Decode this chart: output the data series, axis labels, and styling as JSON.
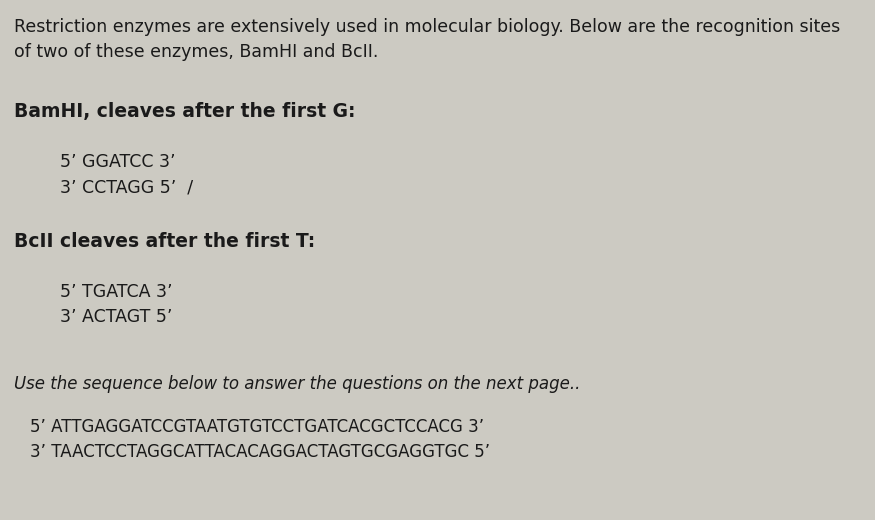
{
  "bg_color": "#cccac2",
  "text_color": "#1a1a1a",
  "intro_line1": "Restriction enzymes are extensively used in molecular biology. Below are the recognition sites",
  "intro_line2": "of two of these enzymes, BamHI and BcII.",
  "bamhi_header": "BamHI, cleaves after the first G:",
  "bamhi_line1": "5’ GGATCC 3’",
  "bamhi_line2": "3’ CCTAGG 5’  /",
  "bcll_header": "BcII cleaves after the first T:",
  "bcll_line1": "5’ TGATCA 3’",
  "bcll_line2": "3’ ACTAGT 5’",
  "use_text": "Use the sequence below to answer the questions on the next page..",
  "seq_line1": "5’ ATTGAGGATCCGTAATGTGTCCTGATCACGCTCCACG 3’",
  "seq_line2": "3’ TAACTCCTAGGCATTACACAGGACTAGTGCGAGGTGC 5’",
  "font_size_intro": 12.5,
  "font_size_header": 13.5,
  "font_size_body": 12.5,
  "font_size_seq": 12.0,
  "font_size_use": 12.0,
  "fig_width": 8.75,
  "fig_height": 5.2,
  "dpi": 100
}
